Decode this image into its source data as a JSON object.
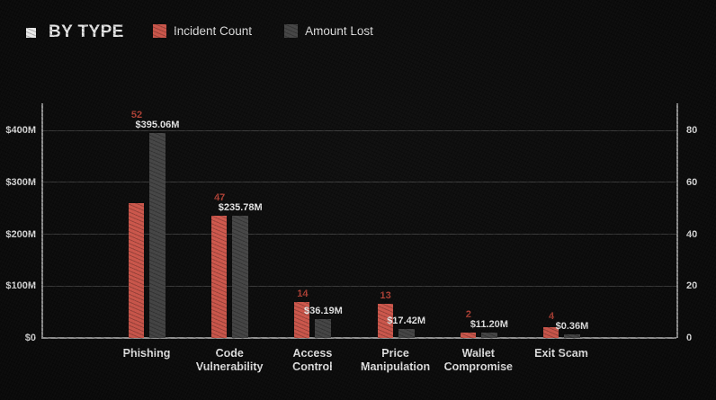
{
  "header": {
    "title": "BY TYPE"
  },
  "chart_data": {
    "type": "bar",
    "title": "BY TYPE",
    "categories": [
      "Phishing",
      "Code Vulnerability",
      "Access Control",
      "Price Manipulation",
      "Wallet Compromise",
      "Exit Scam"
    ],
    "series": [
      {
        "name": "Incident Count",
        "axis": "right",
        "color": "#d75a4e",
        "label_color": "#bc4438",
        "values": [
          52,
          47,
          14,
          13,
          2,
          4
        ],
        "labels": [
          "52",
          "47",
          "14",
          "13",
          "2",
          "4"
        ]
      },
      {
        "name": "Amount Lost",
        "axis": "left",
        "color": "#474747",
        "label_color": "#f5f5f5",
        "values": [
          395.06,
          235.78,
          36.19,
          17.42,
          11.2,
          0.36
        ],
        "labels": [
          "$395.06M",
          "$235.78M",
          "$36.19M",
          "$17.42M",
          "$11.20M",
          "$0.36M"
        ]
      }
    ],
    "left_axis": {
      "ticks": [
        "$0",
        "$100M",
        "$200M",
        "$300M",
        "$400M"
      ],
      "min": 0,
      "max": 400,
      "unit": "M USD"
    },
    "right_axis": {
      "ticks": [
        "0",
        "20",
        "40",
        "60",
        "80"
      ],
      "min": 0,
      "max": 80
    },
    "grid": true,
    "legend_position": "top",
    "background": "#0b0b0b",
    "gridline_color": "#3a3a3a",
    "axis_color": "#9a9a9a"
  }
}
